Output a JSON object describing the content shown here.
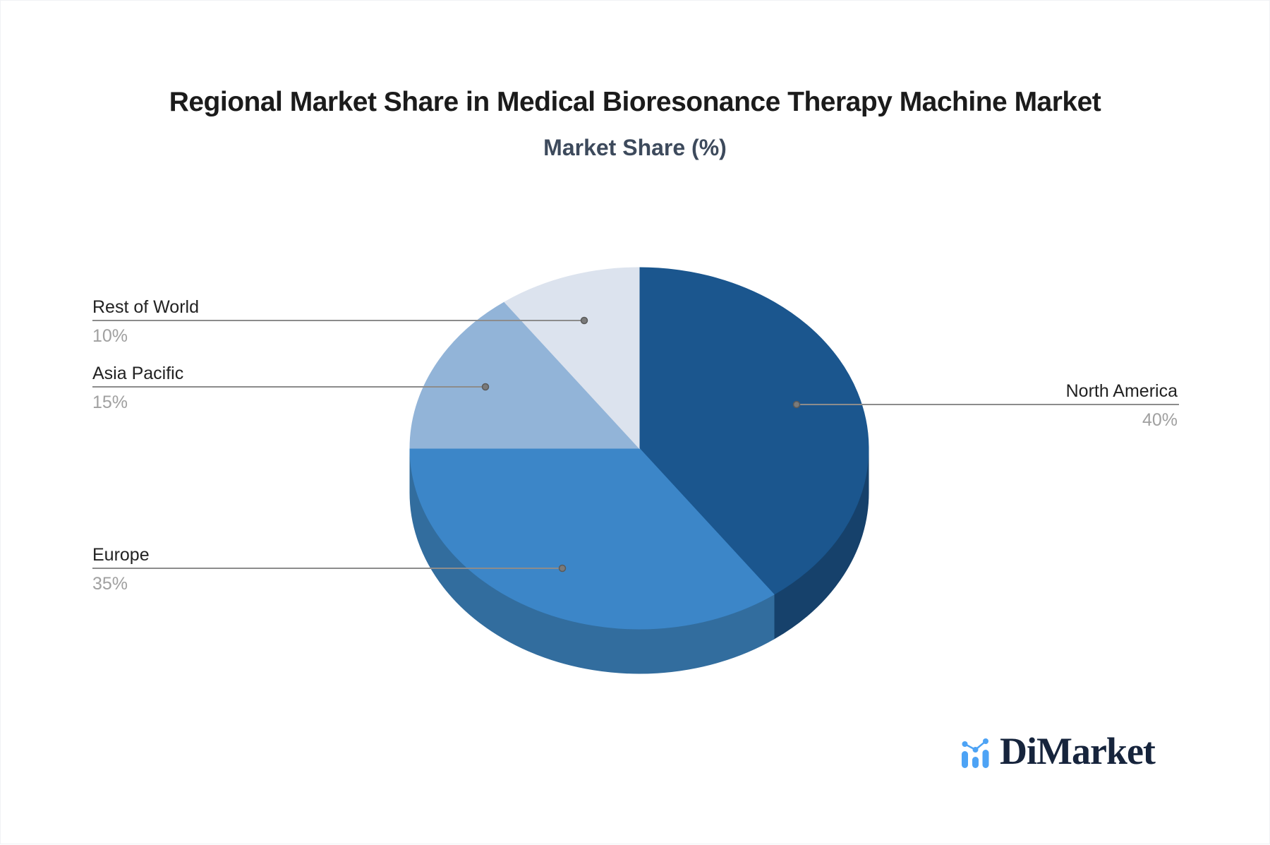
{
  "header": {
    "title": "Regional Market Share in Medical Bioresonance Therapy Machine Market",
    "subtitle": "Market Share (%)"
  },
  "chart_data": {
    "type": "pie",
    "title": "Regional Market Share in Medical Bioresonance Therapy Machine Market",
    "subtitle": "Market Share (%)",
    "unit": "%",
    "style_3d": true,
    "start_angle_deg": 0,
    "direction": "clockwise",
    "legend_position": "none",
    "labels_style": "callout-lines",
    "slices": [
      {
        "label": "North America",
        "value": 40,
        "display": "40%",
        "color": "#1b568e",
        "side_color": "#16416b"
      },
      {
        "label": "Europe",
        "value": 35,
        "display": "35%",
        "color": "#3c86c8",
        "side_color": "#326d9e"
      },
      {
        "label": "Asia Pacific",
        "value": 15,
        "display": "15%",
        "color": "#92b4d8",
        "side_color": "#7a9cc0"
      },
      {
        "label": "Rest of World",
        "value": 10,
        "display": "10%",
        "color": "#dce3ee",
        "side_color": "#c2cbd9"
      }
    ],
    "style": {
      "leader_line_color": "#8c8c8c",
      "leader_dot_fill": "#7a7a7a",
      "leader_dot_stroke": "#5a5a5a",
      "label_color": "#222222",
      "value_color": "#a0a0a0",
      "title_color": "#1b1b1b",
      "subtitle_color": "#3d4a5c"
    }
  },
  "logo": {
    "text": "DiMarket",
    "icon": "bar-chart-logo-icon",
    "text_color": "#16243c",
    "icon_color": "#4da3f5"
  }
}
